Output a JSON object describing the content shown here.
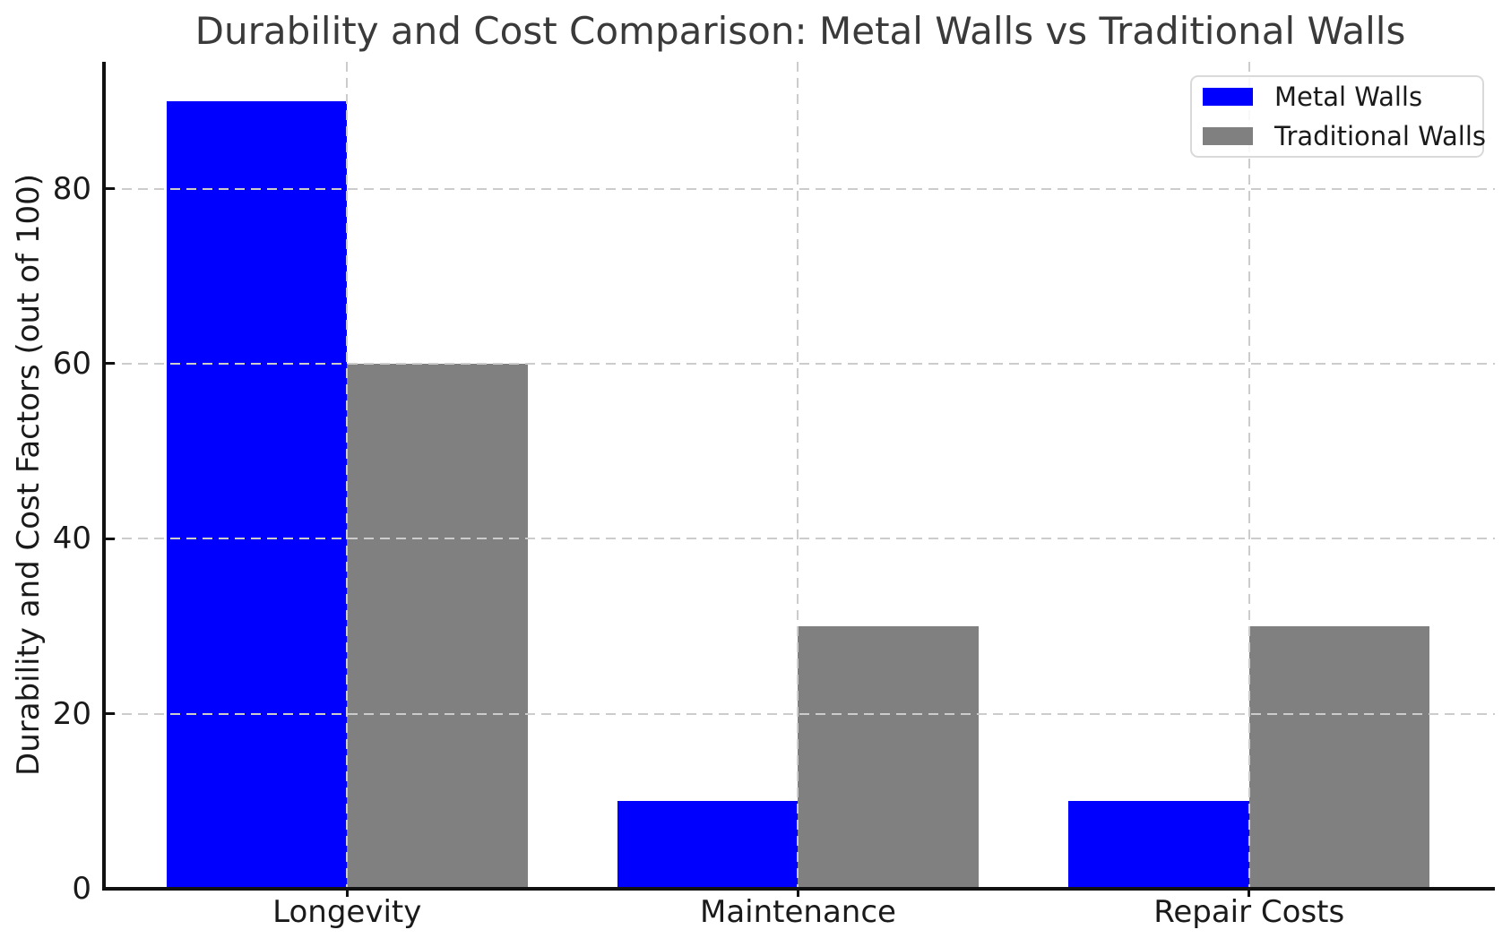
{
  "figure": {
    "title": "Durability and Cost Comparison: Metal Walls vs Traditional Walls",
    "background_color": "#ffffff"
  },
  "chart_data": {
    "type": "bar",
    "title": "Durability and Cost Comparison: Metal Walls vs Traditional Walls",
    "categories": [
      "Longevity",
      "Maintenance",
      "Repair Costs"
    ],
    "series": [
      {
        "name": "Metal Walls",
        "color": "#0000ff",
        "values": [
          90,
          10,
          10
        ]
      },
      {
        "name": "Traditional Walls",
        "color": "#808080",
        "values": [
          60,
          30,
          30
        ]
      }
    ],
    "xlabel": "",
    "ylabel": "Durability and Cost Factors (out of 100)",
    "yticks": [
      0,
      20,
      40,
      60,
      80
    ],
    "ylim": [
      0,
      94.5
    ],
    "xlim": [
      -0.535,
      2.545
    ],
    "bar_width": 0.4,
    "grouping": "side-by-side, bars touching within group",
    "grid": "dashed light-gray gridlines on both axes, drawn above bars",
    "gridline_color": "#cccccc",
    "legend_position": "upper right",
    "spine_color": "#111111",
    "text_color": "#1a1a1a",
    "title_color": "#3a3a3a"
  },
  "legend": {
    "items": [
      {
        "label": "Metal Walls",
        "color": "#0000ff"
      },
      {
        "label": "Traditional Walls",
        "color": "#808080"
      }
    ]
  }
}
